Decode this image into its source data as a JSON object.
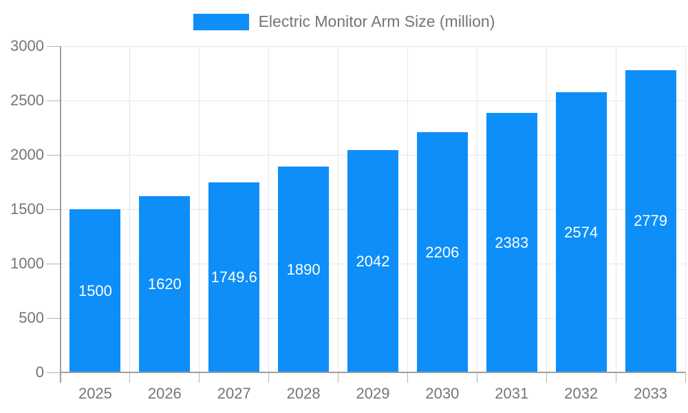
{
  "legend": {
    "label": "Electric Monitor Arm Size (million)"
  },
  "chart_data": {
    "type": "bar",
    "title": "Electric Monitor Arm Size (million)",
    "categories": [
      "2025",
      "2026",
      "2027",
      "2028",
      "2029",
      "2030",
      "2031",
      "2032",
      "2033"
    ],
    "values": [
      1500,
      1620,
      1749.6,
      1890,
      2042,
      2206,
      2383,
      2574,
      2779
    ],
    "value_labels": [
      "1500",
      "1620",
      "1749.6",
      "1890",
      "2042",
      "2206",
      "2383",
      "2574",
      "2779"
    ],
    "xlabel": "",
    "ylabel": "",
    "ylim": [
      0,
      3000
    ],
    "y_ticks": [
      0,
      500,
      1000,
      1500,
      2000,
      2500,
      3000
    ],
    "grid": true,
    "legend_position": "top",
    "colors": {
      "bar": "#0d8ef8",
      "bar_label": "#ffffff",
      "axis_text": "#757575",
      "gridline": "#e6e6e6",
      "axis_line": "#9e9e9e",
      "tick_mark": "#b3b3b3",
      "background": "#ffffff"
    }
  }
}
